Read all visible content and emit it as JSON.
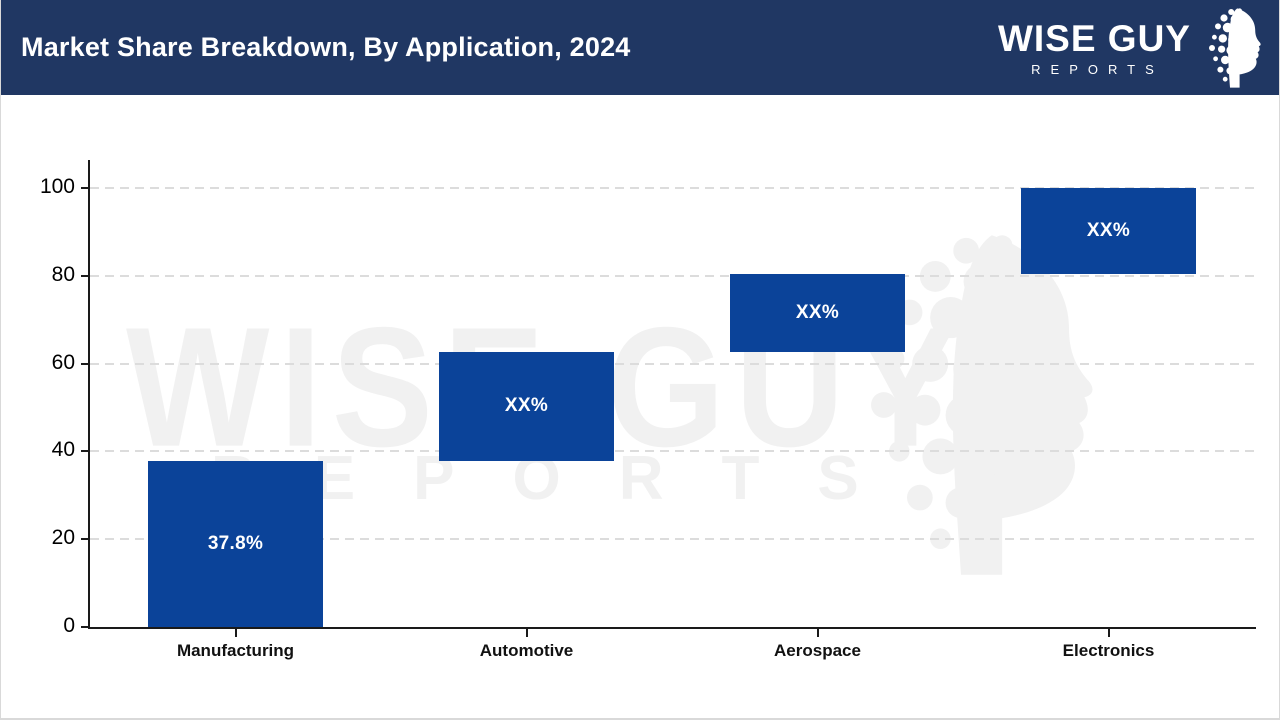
{
  "header": {
    "title": "Market Share Breakdown, By Application, 2024",
    "logo": {
      "line1": "WISE GUY",
      "line2": "REPORTS"
    }
  },
  "watermark": {
    "line1": "WISE GUY",
    "line2": "REPORTS"
  },
  "colors": {
    "header_bg": "#203763",
    "bar": "#0b4399",
    "grid": "#dcdcdc",
    "axis": "#1a1a1a",
    "bar_label": "#ffffff",
    "watermark": "#f1f1f1"
  },
  "chart_data": {
    "type": "bar",
    "subtype": "waterfall",
    "title": "Market Share Breakdown, By Application, 2024",
    "categories": [
      "Manufacturing",
      "Automotive",
      "Aerospace",
      "Electronics"
    ],
    "segments": [
      {
        "category": "Manufacturing",
        "start": 0,
        "end": 37.8,
        "value": 37.8,
        "label": "37.8%"
      },
      {
        "category": "Automotive",
        "start": 37.8,
        "end": 62.7,
        "value": 24.9,
        "label": "XX%"
      },
      {
        "category": "Aerospace",
        "start": 62.7,
        "end": 80.5,
        "value": 17.8,
        "label": "XX%"
      },
      {
        "category": "Electronics",
        "start": 80.5,
        "end": 100,
        "value": 19.5,
        "label": "XX%"
      }
    ],
    "xlabel": "",
    "ylabel": "",
    "ylim": [
      0,
      100
    ],
    "yticks": [
      0,
      20,
      40,
      60,
      80,
      100
    ],
    "grid": "horizontal-dashed",
    "legend": "none"
  }
}
